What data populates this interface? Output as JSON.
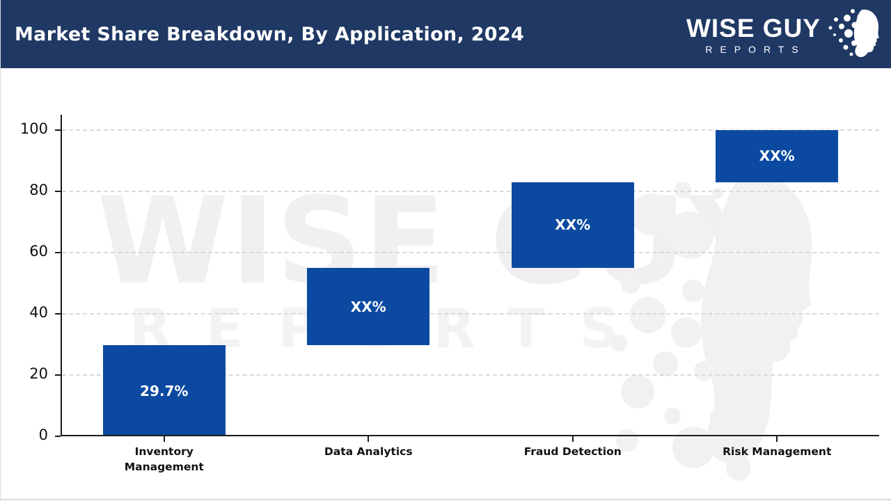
{
  "header": {
    "title": "Market Share Breakdown, By Application, 2024",
    "logo": {
      "line1": "WISE GUY",
      "line2": "REPORTS"
    }
  },
  "watermark": {
    "line1": "WISE GUY",
    "line2": "REPORTS"
  },
  "colors": {
    "header_bg": "#1f3864",
    "bar_blue": "#0b4aa0",
    "grid_gray": "#d9d9d9",
    "watermark_gray": "#f1f1f4"
  },
  "chart_data": {
    "type": "bar",
    "subtype": "waterfall",
    "title": "Market Share Breakdown, By Application, 2024",
    "categories": [
      "Inventory Management",
      "Data Analytics",
      "Fraud Detection",
      "Risk Management"
    ],
    "segments": [
      {
        "category": "Inventory Management",
        "start": 0,
        "end": 29.7,
        "label": "29.7%"
      },
      {
        "category": "Data Analytics",
        "start": 29.7,
        "end": 55,
        "label": "XX%"
      },
      {
        "category": "Fraud Detection",
        "start": 55,
        "end": 83,
        "label": "XX%"
      },
      {
        "category": "Risk Management",
        "start": 83,
        "end": 100,
        "label": "XX%"
      }
    ],
    "xlabel": "",
    "ylabel": "",
    "ylim": [
      0,
      100
    ],
    "yticks": [
      0,
      20,
      40,
      60,
      80,
      100
    ],
    "grid": "horizontal-dashed",
    "legend": "none"
  }
}
